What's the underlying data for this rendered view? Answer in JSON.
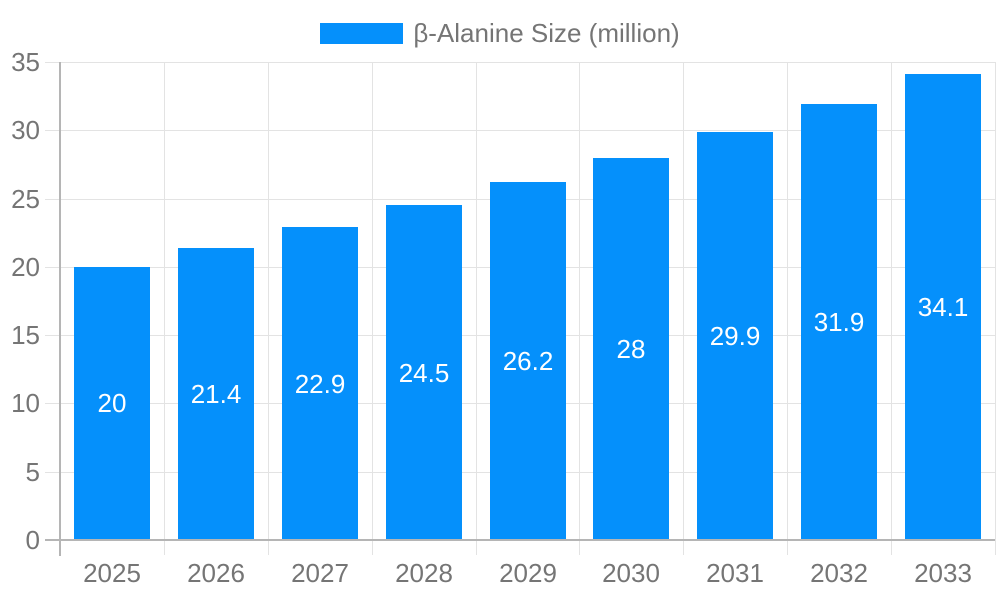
{
  "chart_data": {
    "type": "bar",
    "title": "",
    "legend": {
      "label": "β-Alanine Size (million)",
      "position": "top"
    },
    "categories": [
      "2025",
      "2026",
      "2027",
      "2028",
      "2029",
      "2030",
      "2031",
      "2032",
      "2033"
    ],
    "series": [
      {
        "name": "β-Alanine Size (million)",
        "values": [
          20,
          21.4,
          22.9,
          24.5,
          26.2,
          28,
          29.9,
          31.9,
          34.1
        ]
      }
    ],
    "data_labels": [
      "20",
      "21.4",
      "22.9",
      "24.5",
      "26.2",
      "28",
      "29.9",
      "31.9",
      "34.1"
    ],
    "xlabel": "",
    "ylabel": "",
    "ylim": [
      0,
      35
    ],
    "yticks": [
      0,
      5,
      10,
      15,
      20,
      25,
      30,
      35
    ],
    "grid": true,
    "colors": {
      "bar": "#0590FB",
      "axis_text": "#757575",
      "legend_text": "#757575",
      "grid_line": "#e3e3e3",
      "axis_line": "#b5b5b5",
      "data_label": "#ffffff",
      "background": "#ffffff"
    }
  }
}
